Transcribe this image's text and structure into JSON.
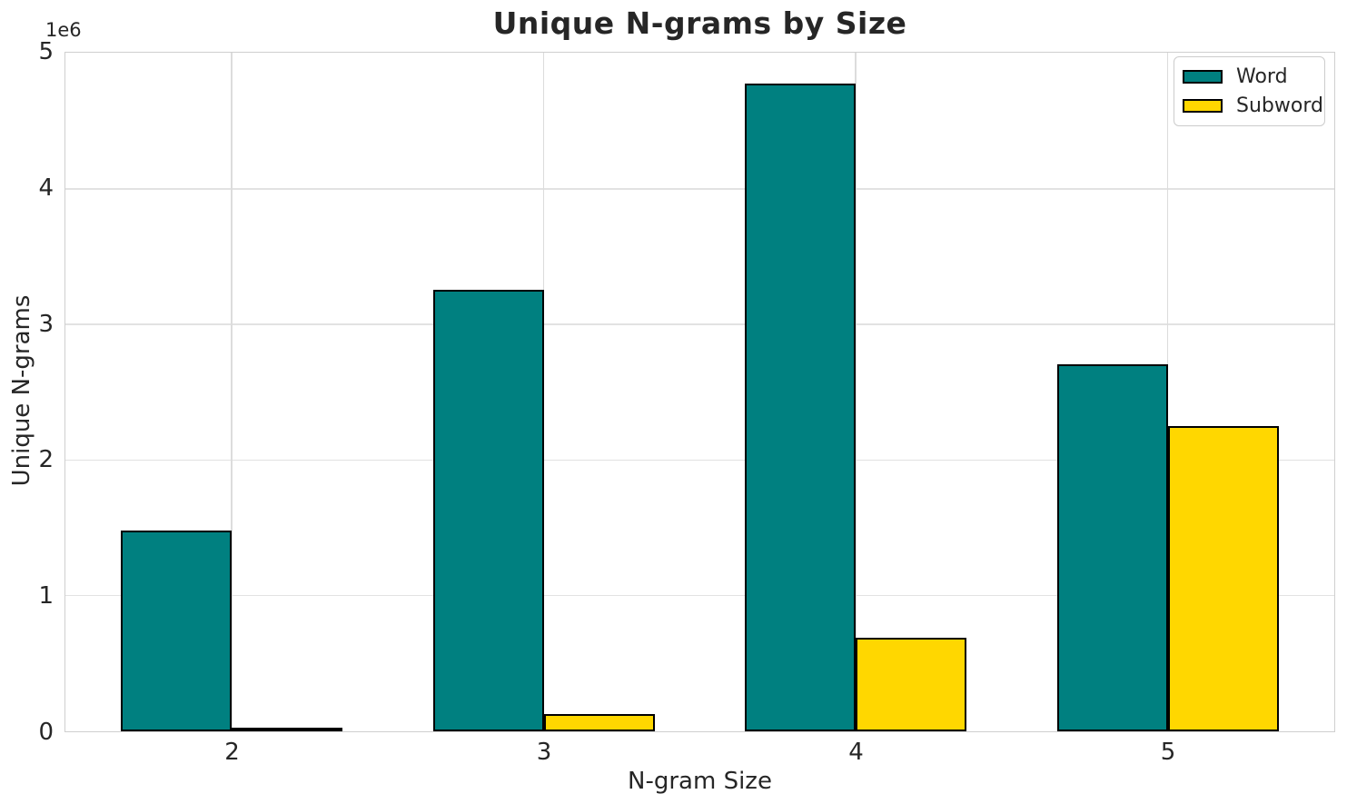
{
  "chart_data": {
    "type": "bar",
    "title": "Unique N-grams by Size",
    "xlabel": "N-gram Size",
    "ylabel": "Unique N-grams",
    "y_offset_label": "1e6",
    "categories": [
      "2",
      "3",
      "4",
      "5"
    ],
    "series": [
      {
        "name": "Word",
        "color": "#008080",
        "values": [
          1480000,
          3260000,
          4780000,
          2710000
        ]
      },
      {
        "name": "Subword",
        "color": "#FFD700",
        "values": [
          15000,
          125000,
          690000,
          2250000
        ]
      }
    ],
    "ylim": [
      0,
      5000000
    ],
    "yticks": [
      0,
      1000000,
      2000000,
      3000000,
      4000000,
      5000000
    ],
    "ytick_labels": [
      "0",
      "1",
      "2",
      "3",
      "4",
      "5"
    ],
    "grid": true,
    "legend_position": "upper right",
    "bar_edgecolor": "#000000",
    "grid_color": "#dcdcdc",
    "spine_color": "#cfcfcf",
    "text_color": "#262626"
  }
}
